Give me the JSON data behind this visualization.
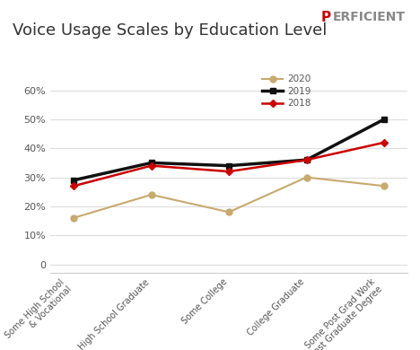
{
  "title": "Voice Usage Scales by Education Level",
  "categories": [
    "Some High School\n& Vocational",
    "High School Graduate",
    "Some College",
    "College Graduate",
    "Some Post Grad Work\n& Post Graduate Degree"
  ],
  "series": [
    {
      "label": "2020",
      "color": "#c8a96e",
      "marker": "o",
      "linewidth": 1.5,
      "markersize": 5,
      "values": [
        0.16,
        0.24,
        0.18,
        0.3,
        0.27
      ]
    },
    {
      "label": "2019",
      "color": "#111111",
      "marker": "s",
      "linewidth": 2.5,
      "markersize": 5,
      "values": [
        0.29,
        0.35,
        0.34,
        0.36,
        0.5
      ]
    },
    {
      "label": "2018",
      "color": "#cc0000",
      "marker": "D",
      "linewidth": 1.8,
      "markersize": 4,
      "values": [
        0.27,
        0.34,
        0.32,
        0.36,
        0.42
      ]
    }
  ],
  "yticks": [
    0,
    0.1,
    0.2,
    0.3,
    0.4,
    0.5,
    0.6
  ],
  "ytick_labels": [
    "0",
    "10%",
    "20%",
    "30%",
    "40%",
    "50%",
    "60%"
  ],
  "ylim": [
    -0.03,
    0.67
  ],
  "background_color": "#ffffff",
  "grid_color": "#dddddd",
  "perficient_P": "P",
  "perficient_rest": "ERFICIENT",
  "perficient_P_color": "#cc0000",
  "perficient_rest_color": "#888888",
  "title_fontsize": 13,
  "legend_fontsize": 7.5,
  "axis_fontsize": 7
}
